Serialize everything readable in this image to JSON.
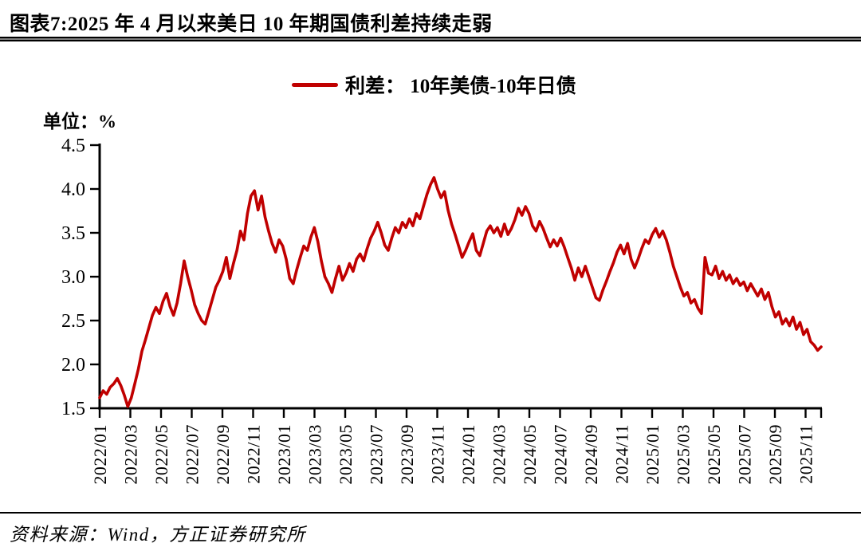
{
  "header": {
    "title": "图表7:2025 年 4 月以来美日 10 年期国债利差持续走弱"
  },
  "legend": {
    "label": "利差： 10年美债-10年日债"
  },
  "unit_label": "单位：%",
  "footer": {
    "source": "资料来源：Wind，方正证券研究所"
  },
  "colors": {
    "series": "#C00000",
    "axis": "#000000"
  },
  "chart_data": {
    "type": "line",
    "title": "图表7:2025 年 4 月以来美日 10 年期国债利差持续走弱",
    "ylabel": "单位：%",
    "xlabel": "",
    "ylim": [
      1.5,
      4.5
    ],
    "grid": false,
    "legend_position": "top-center",
    "y_tick_labels": [
      "4.5",
      "4.0",
      "3.5",
      "3.0",
      "2.5",
      "2.0",
      "1.5"
    ],
    "y_ticks": [
      4.5,
      4.0,
      3.5,
      3.0,
      2.5,
      2.0,
      1.5
    ],
    "x_tick_labels": [
      "2022/01",
      "2022/03",
      "2022/05",
      "2022/07",
      "2022/09",
      "2022/11",
      "2023/01",
      "2023/03",
      "2023/05",
      "2023/07",
      "2023/09",
      "2023/11",
      "2024/01",
      "2024/03",
      "2024/05",
      "2024/07",
      "2024/09",
      "2024/11",
      "2025/01",
      "2025/03",
      "2025/05",
      "2025/07",
      "2025/09",
      "2025/11"
    ],
    "x_start": "2022/01",
    "x_end": "2025/12",
    "frequency": "weekly",
    "series": [
      {
        "name": "利差： 10年美债-10年日债",
        "color": "#C00000",
        "values": [
          1.62,
          1.7,
          1.66,
          1.74,
          1.78,
          1.84,
          1.76,
          1.65,
          1.52,
          1.62,
          1.78,
          1.95,
          2.15,
          2.28,
          2.42,
          2.56,
          2.65,
          2.58,
          2.72,
          2.81,
          2.66,
          2.56,
          2.7,
          2.92,
          3.18,
          3.0,
          2.85,
          2.68,
          2.58,
          2.5,
          2.46,
          2.6,
          2.74,
          2.88,
          2.96,
          3.06,
          3.22,
          2.98,
          3.15,
          3.3,
          3.52,
          3.42,
          3.72,
          3.92,
          3.98,
          3.76,
          3.92,
          3.68,
          3.52,
          3.38,
          3.28,
          3.42,
          3.35,
          3.2,
          2.98,
          2.92,
          3.08,
          3.22,
          3.35,
          3.3,
          3.45,
          3.56,
          3.4,
          3.18,
          3.0,
          2.92,
          2.82,
          2.98,
          3.12,
          2.96,
          3.04,
          3.15,
          3.06,
          3.2,
          3.26,
          3.18,
          3.32,
          3.44,
          3.52,
          3.62,
          3.5,
          3.36,
          3.3,
          3.44,
          3.56,
          3.5,
          3.62,
          3.56,
          3.66,
          3.58,
          3.72,
          3.66,
          3.8,
          3.94,
          4.05,
          4.13,
          4.0,
          3.9,
          3.97,
          3.76,
          3.6,
          3.48,
          3.35,
          3.22,
          3.3,
          3.4,
          3.49,
          3.3,
          3.24,
          3.38,
          3.52,
          3.58,
          3.5,
          3.56,
          3.46,
          3.6,
          3.48,
          3.55,
          3.65,
          3.78,
          3.7,
          3.8,
          3.72,
          3.58,
          3.52,
          3.63,
          3.55,
          3.44,
          3.34,
          3.42,
          3.35,
          3.44,
          3.34,
          3.22,
          3.1,
          2.96,
          3.1,
          3.0,
          3.12,
          3.0,
          2.88,
          2.76,
          2.73,
          2.85,
          2.95,
          3.06,
          3.16,
          3.28,
          3.36,
          3.26,
          3.38,
          3.2,
          3.1,
          3.2,
          3.32,
          3.42,
          3.38,
          3.48,
          3.55,
          3.45,
          3.52,
          3.42,
          3.28,
          3.12,
          3.0,
          2.88,
          2.78,
          2.82,
          2.7,
          2.74,
          2.64,
          2.58,
          3.22,
          3.04,
          3.02,
          3.12,
          2.98,
          3.06,
          2.96,
          3.02,
          2.92,
          2.98,
          2.9,
          2.94,
          2.84,
          2.92,
          2.85,
          2.78,
          2.86,
          2.74,
          2.82,
          2.66,
          2.54,
          2.6,
          2.46,
          2.52,
          2.44,
          2.54,
          2.4,
          2.48,
          2.34,
          2.4,
          2.26,
          2.22,
          2.16,
          2.2
        ]
      }
    ]
  }
}
